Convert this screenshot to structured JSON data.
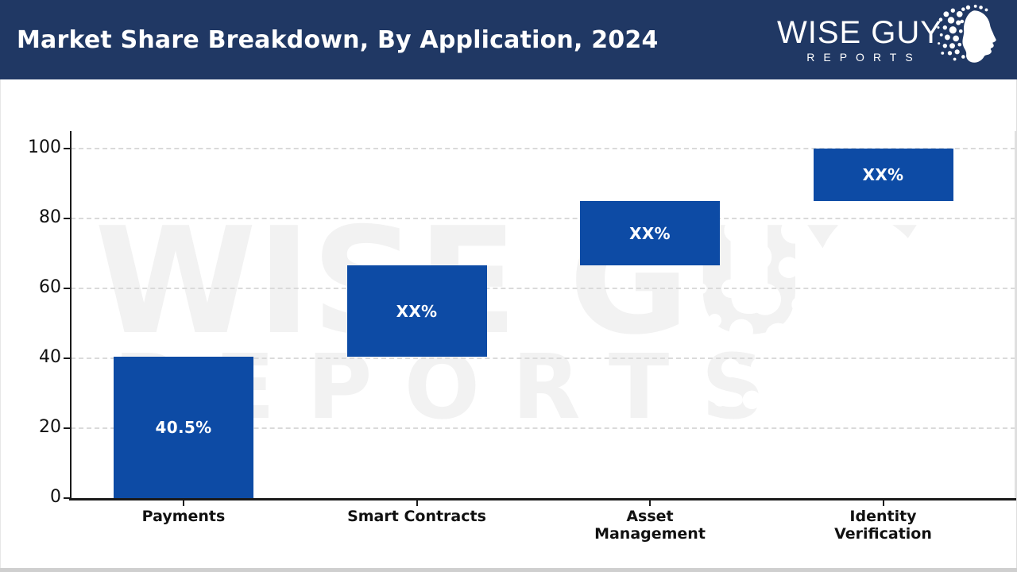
{
  "header": {
    "title": "Market Share Breakdown, By Application, 2024",
    "logo": {
      "line1": "WISE GUY",
      "line2": "REPORTS"
    }
  },
  "watermark": {
    "line1": "WISE GUY",
    "line2": "REPORTS"
  },
  "colors": {
    "header_bg": "#203864",
    "bar_blue": "#0d4ba5",
    "grid_gray": "#dadada",
    "axis_black": "#1a1a1a",
    "watermark_gray": "#f2f2f2",
    "bottom_strip": "#cfcfcf"
  },
  "chart_data": {
    "type": "bar",
    "subtype": "waterfall-segments",
    "title": "Market Share Breakdown, By Application, 2024",
    "categories": [
      "Payments",
      "Smart Contracts",
      "Asset Management",
      "Identity Verification"
    ],
    "series": [
      {
        "name": "Market Share",
        "segments": [
          {
            "category": "Payments",
            "start": 0,
            "end": 40.5,
            "value_label": "40.5%"
          },
          {
            "category": "Smart Contracts",
            "start": 40.5,
            "end": 66.5,
            "value_label": "XX%"
          },
          {
            "category": "Asset Management",
            "start": 66.5,
            "end": 85,
            "value_label": "XX%"
          },
          {
            "category": "Identity Verification",
            "start": 85,
            "end": 100,
            "value_label": "XX%"
          }
        ]
      }
    ],
    "xlabel": "",
    "ylabel": "",
    "ylim": [
      0,
      100
    ],
    "yticks": [
      0,
      20,
      40,
      60,
      80,
      100
    ],
    "grid": "horizontal-dashed",
    "legend": "none",
    "bar_value_labels_inside": true
  }
}
